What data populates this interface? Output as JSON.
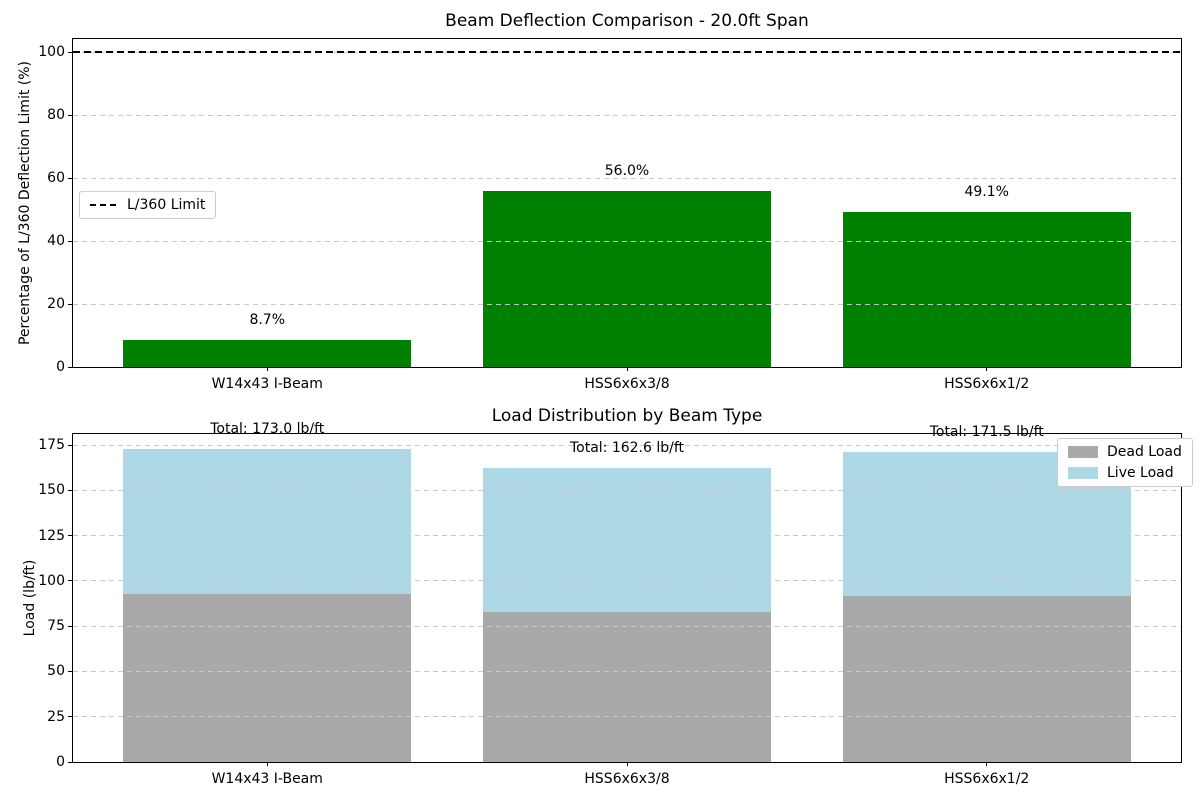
{
  "chart_data": [
    {
      "type": "bar",
      "title": "Beam Deflection Comparison - 20.0ft Span",
      "ylabel": "Percentage of L/360 Deflection Limit (%)",
      "categories": [
        "W14x43 I-Beam",
        "HSS6x6x3/8",
        "HSS6x6x1/2"
      ],
      "values": [
        8.7,
        56.0,
        49.1
      ],
      "bar_labels": [
        "8.7%",
        "56.0%",
        "49.1%"
      ],
      "bar_color": "#008000",
      "ylim": [
        0,
        104.2
      ],
      "yticks": [
        0,
        20,
        40,
        60,
        80,
        100
      ],
      "grid": "y-dashed",
      "legend_position": "center-left",
      "reference_line": {
        "value": 100,
        "style": "dashed",
        "color": "#000000",
        "label": "L/360 Limit"
      }
    },
    {
      "type": "stacked-bar",
      "title": "Load Distribution by Beam Type",
      "ylabel": "Load (lb/ft)",
      "categories": [
        "W14x43 I-Beam",
        "HSS6x6x3/8",
        "HSS6x6x1/2"
      ],
      "series": [
        {
          "name": "Dead Load",
          "color": "#a9a9a9",
          "values": [
            93.0,
            82.6,
            91.5
          ]
        },
        {
          "name": "Live Load",
          "color": "#add8e6",
          "values": [
            80.0,
            80.0,
            80.0
          ]
        }
      ],
      "totals": [
        173.0,
        162.6,
        171.5
      ],
      "bar_labels": [
        "Total: 173.0 lb/ft",
        "Total: 162.6 lb/ft",
        "Total: 171.5 lb/ft"
      ],
      "ylim": [
        0,
        181.2
      ],
      "yticks": [
        0,
        25,
        50,
        75,
        100,
        125,
        150,
        175
      ],
      "grid": "y-dashed",
      "legend_position": "top-right"
    }
  ]
}
